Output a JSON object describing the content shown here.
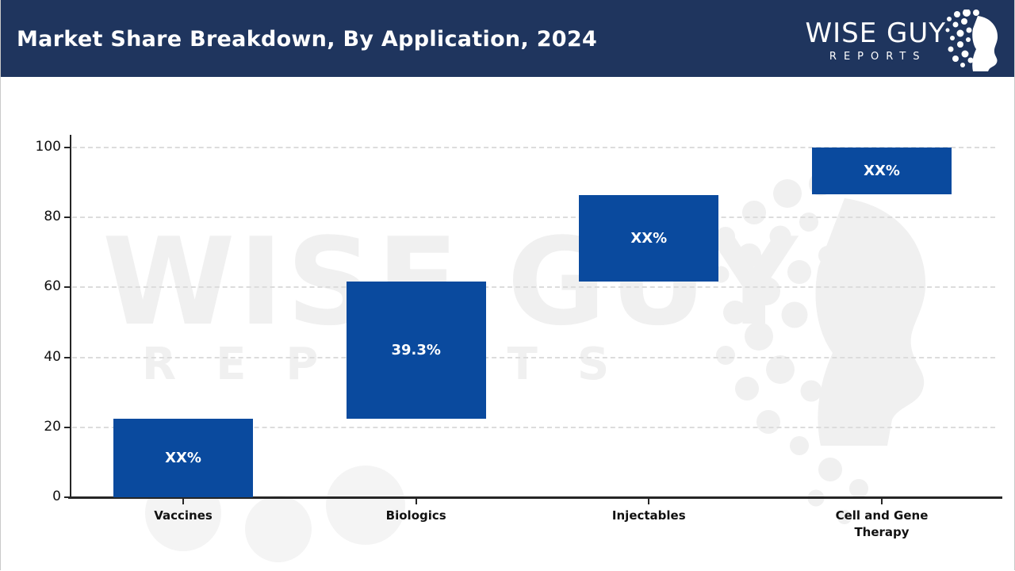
{
  "header": {
    "title": "Market Share Breakdown, By Application, 2024",
    "bg_color": "#1f355e",
    "logo": {
      "line1": "WISE GUY",
      "line2": "REPORTS"
    }
  },
  "watermark": {
    "line1": "WISE GUY",
    "line2": "REPORTS"
  },
  "chart_data": {
    "type": "bar",
    "subtype": "waterfall",
    "title": "Market Share Breakdown, By Application, 2024",
    "categories": [
      "Vaccines",
      "Biologics",
      "Injectables",
      "Cell and Gene Therapy"
    ],
    "segments": [
      {
        "category": "Vaccines",
        "start": 0,
        "end": 22.4,
        "label": "XX%"
      },
      {
        "category": "Biologics",
        "start": 22.4,
        "end": 61.7,
        "label": "39.3%"
      },
      {
        "category": "Injectables",
        "start": 61.7,
        "end": 86.4,
        "label": "XX%"
      },
      {
        "category": "Cell and Gene Therapy",
        "start": 86.6,
        "end": 100,
        "label": "XX%"
      }
    ],
    "bar_color": "#0a4a9e",
    "label_color": "#ffffff",
    "ylim": [
      0,
      100
    ],
    "yticks": [
      0,
      20,
      40,
      60,
      80,
      100
    ],
    "xlabel": "",
    "ylabel": "",
    "grid": "horizontal-dashed",
    "legend": "none",
    "gridline_color": "#dcdcdc",
    "axis_color": "#262626"
  }
}
